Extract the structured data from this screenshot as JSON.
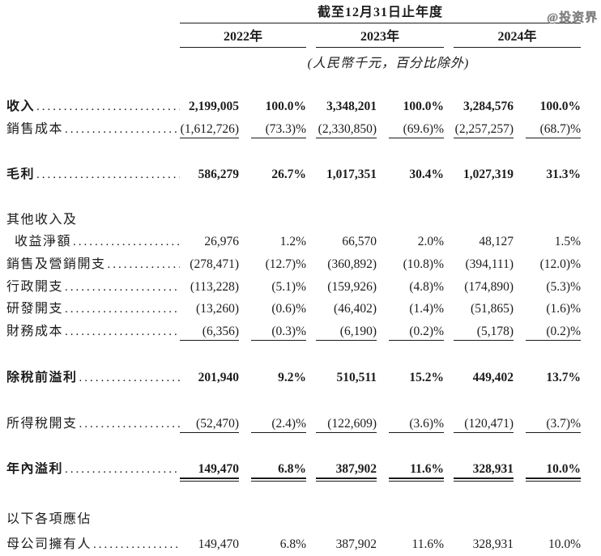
{
  "watermark": "@投资界",
  "header": {
    "period_title": "截至12月31日止年度",
    "years": [
      "2022年",
      "2023年",
      "2024年"
    ],
    "unit_note": "(人民幣千元，百分比除外)"
  },
  "rows": [
    {
      "label": "收入",
      "dots": true,
      "bold": true,
      "cells": [
        "2,199,005",
        "100.0%",
        "3,348,201",
        "100.0%",
        "3,284,576",
        "100.0%"
      ]
    },
    {
      "label": "銷售成本",
      "dots": true,
      "underline": "single",
      "cells": [
        "(1,612,726)",
        "(73.3)%",
        "(2,330,850)",
        "(69.6)%",
        "(2,257,257)",
        "(68.7)%"
      ]
    },
    {
      "label": "毛利",
      "dots": true,
      "bold": true,
      "cells": [
        "586,279",
        "26.7%",
        "1,017,351",
        "30.4%",
        "1,027,319",
        "31.3%"
      ]
    },
    {
      "label": "其他收入及",
      "dots": false,
      "cells": []
    },
    {
      "label": "收益淨額",
      "dots": true,
      "indent": true,
      "cells": [
        "26,976",
        "1.2%",
        "66,570",
        "2.0%",
        "48,127",
        "1.5%"
      ]
    },
    {
      "label": "銷售及營銷開支",
      "dots": true,
      "cells": [
        "(278,471)",
        "(12.7)%",
        "(360,892)",
        "(10.8)%",
        "(394,111)",
        "(12.0)%"
      ]
    },
    {
      "label": "行政開支",
      "dots": true,
      "cells": [
        "(113,228)",
        "(5.1)%",
        "(159,926)",
        "(4.8)%",
        "(174,890)",
        "(5.3)%"
      ]
    },
    {
      "label": "研發開支",
      "dots": true,
      "cells": [
        "(13,260)",
        "(0.6)%",
        "(46,402)",
        "(1.4)%",
        "(51,865)",
        "(1.6)%"
      ]
    },
    {
      "label": "財務成本",
      "dots": true,
      "underline": "single",
      "cells": [
        "(6,356)",
        "(0.3)%",
        "(6,190)",
        "(0.2)%",
        "(5,178)",
        "(0.2)%"
      ]
    },
    {
      "label": "除稅前溢利",
      "dots": true,
      "bold": true,
      "cells": [
        "201,940",
        "9.2%",
        "510,511",
        "15.2%",
        "449,402",
        "13.7%"
      ]
    },
    {
      "label": "所得稅開支",
      "dots": true,
      "underline": "single",
      "cells": [
        "(52,470)",
        "(2.4)%",
        "(122,609)",
        "(3.6)%",
        "(120,471)",
        "(3.7)%"
      ]
    },
    {
      "label": "年內溢利",
      "dots": true,
      "bold": true,
      "underline": "double",
      "cells": [
        "149,470",
        "6.8%",
        "387,902",
        "11.6%",
        "328,931",
        "10.0%"
      ]
    },
    {
      "label": "以下各項應佔",
      "dots": false,
      "cells": []
    },
    {
      "label": "母公司擁有人",
      "dots": true,
      "cells": [
        "149,470",
        "6.8%",
        "387,902",
        "11.6%",
        "328,931",
        "10.0%"
      ]
    }
  ]
}
